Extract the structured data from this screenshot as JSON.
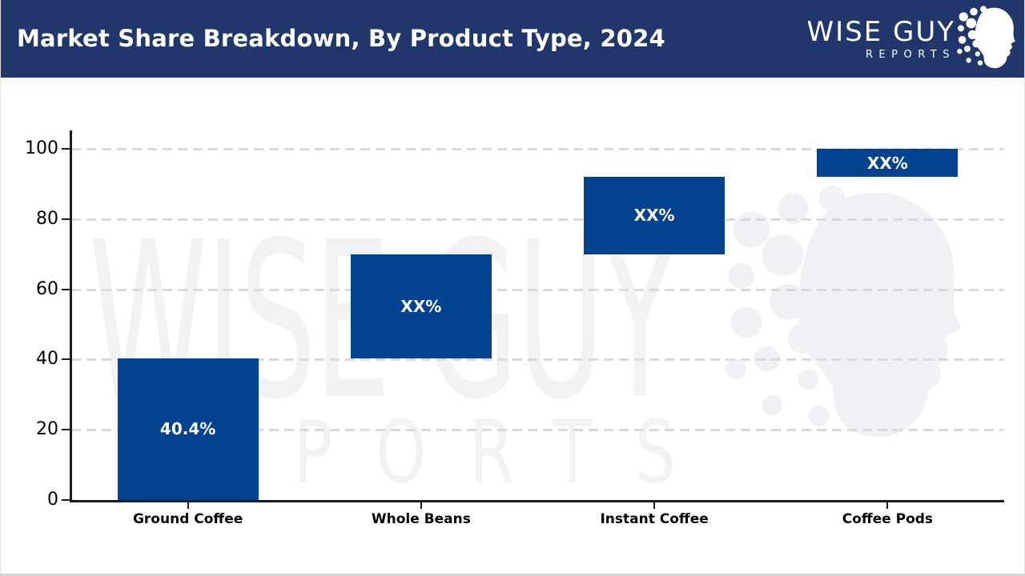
{
  "header": {
    "title": "Market Share Breakdown, By Product Type, 2024",
    "logo": {
      "name": "WISE GUY",
      "tagline": "REPORTS"
    }
  },
  "watermark": {
    "line1": "WISE GUY",
    "line2": "REPORTS"
  },
  "colors": {
    "header_bg": "#21376B",
    "bar": "#04418F",
    "bar_label": "#FFFFFF",
    "grid": "#DADADA",
    "axis": "#1A1A1A",
    "watermark": "#F1F2F4"
  },
  "chart_data": {
    "type": "bar",
    "variant": "waterfall",
    "title": "Market Share Breakdown, By Product Type, 2024",
    "categories": [
      "Ground Coffee",
      "Whole Beans",
      "Instant Coffee",
      "Coffee Pods"
    ],
    "segments": [
      {
        "category": "Ground Coffee",
        "start": 0,
        "end": 40.4,
        "label": "40.4%"
      },
      {
        "category": "Whole Beans",
        "start": 40.4,
        "end": 70,
        "label": "XX%"
      },
      {
        "category": "Instant Coffee",
        "start": 70,
        "end": 92,
        "label": "XX%"
      },
      {
        "category": "Coffee Pods",
        "start": 92,
        "end": 100,
        "label": "XX%"
      }
    ],
    "ylim": [
      0,
      100
    ],
    "yticks": [
      0,
      20,
      40,
      60,
      80,
      100
    ],
    "xlabel": "",
    "ylabel": "",
    "grid": "dashed-horizontal",
    "legend": "none"
  }
}
